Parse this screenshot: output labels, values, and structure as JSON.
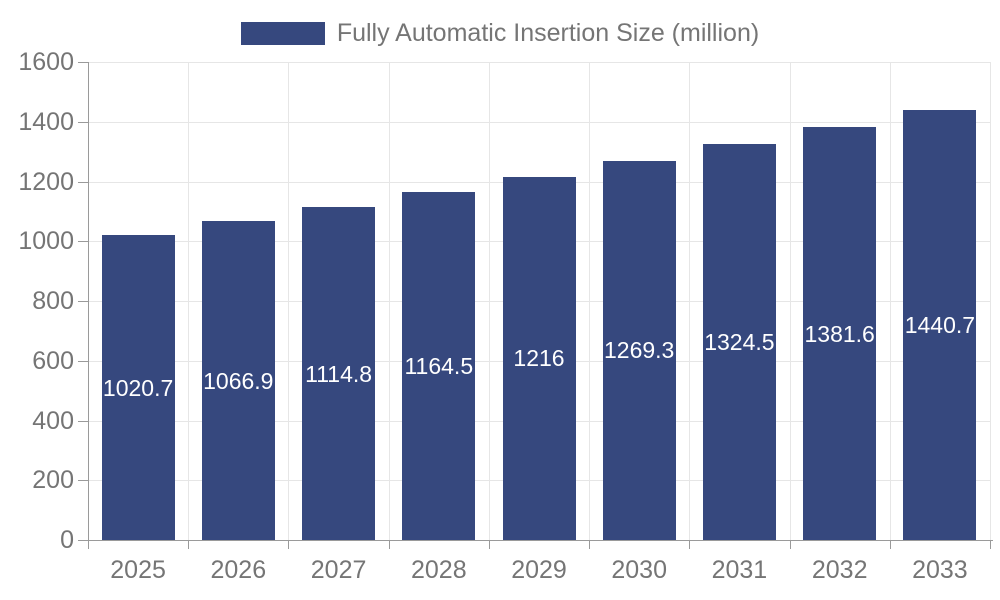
{
  "chart_data": {
    "type": "bar",
    "title": "",
    "legend": "Fully Automatic Insertion Size (million)",
    "legend_position": "top",
    "categories": [
      "2025",
      "2026",
      "2027",
      "2028",
      "2029",
      "2030",
      "2031",
      "2032",
      "2033"
    ],
    "values": [
      1020.7,
      1066.9,
      1114.8,
      1164.5,
      1216,
      1269.3,
      1324.5,
      1381.6,
      1440.7
    ],
    "xlabel": "",
    "ylabel": "",
    "ylim": [
      0,
      1600
    ],
    "yticks": [
      0,
      200,
      400,
      600,
      800,
      1000,
      1200,
      1400,
      1600
    ],
    "grid": true,
    "colors": {
      "bar": "#36487e",
      "value_label": "#ffffff",
      "axis": "#9a9a9a",
      "grid": "#e6e6e6",
      "tick_label": "#757575",
      "background": "#ffffff"
    }
  }
}
